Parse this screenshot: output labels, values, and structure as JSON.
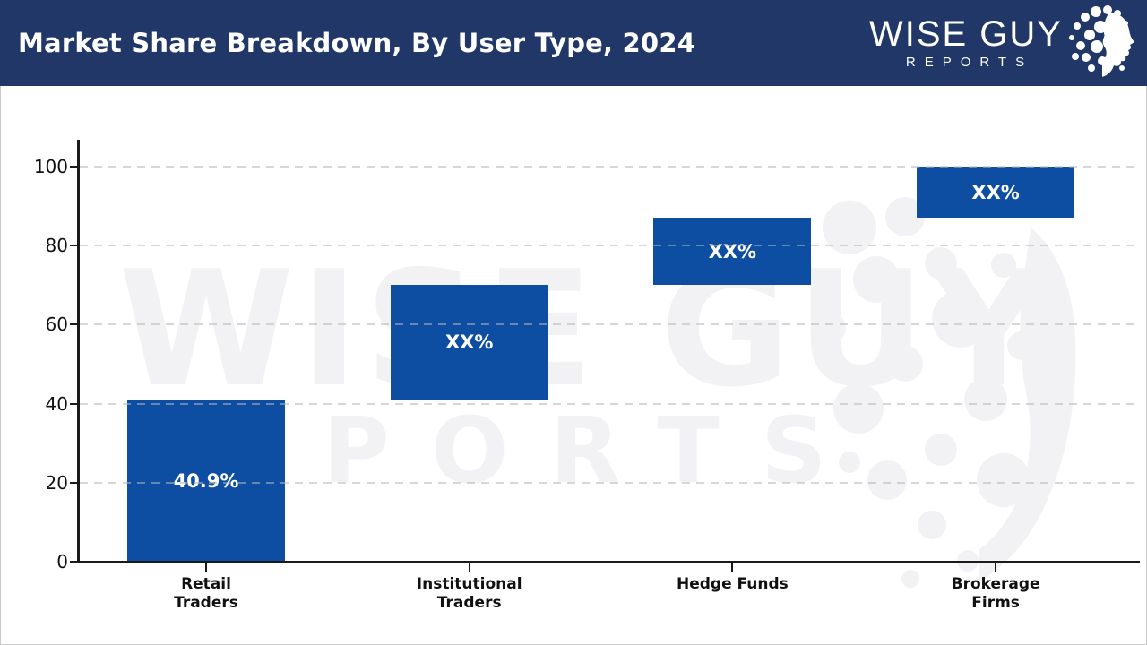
{
  "header": {
    "title": "Market Share Breakdown, By User Type, 2024",
    "bg_color": "#203768",
    "logo": {
      "line1": "WISE GUY",
      "line2": "REPORTS"
    }
  },
  "watermark": {
    "line1": "WISE GUY",
    "line2": "PORTS"
  },
  "chart_data": {
    "type": "bar",
    "subtype": "waterfall",
    "title": "Market Share Breakdown, By User Type, 2024",
    "categories": [
      "Retail Traders",
      "Institutional Traders",
      "Hedge Funds",
      "Brokerage Firms"
    ],
    "series": [
      {
        "name": "Market Share",
        "segments": [
          {
            "category": "Retail Traders",
            "start": 0,
            "end": 40.9,
            "label": "40.9%"
          },
          {
            "category": "Institutional Traders",
            "start": 40.9,
            "end": 70,
            "label": "XX%"
          },
          {
            "category": "Hedge Funds",
            "start": 70,
            "end": 87,
            "label": "XX%"
          },
          {
            "category": "Brokerage Firms",
            "start": 87,
            "end": 100,
            "label": "XX%"
          }
        ]
      }
    ],
    "xlabel": "",
    "ylabel": "",
    "ylim": [
      0,
      100
    ],
    "yticks": [
      0,
      20,
      40,
      60,
      80,
      100
    ],
    "grid": "horizontal-dashed",
    "legend": "none",
    "bar_color": "#0d4ea3",
    "bar_label_color": "#ffffff",
    "axis_color": "#1a1a1a"
  }
}
